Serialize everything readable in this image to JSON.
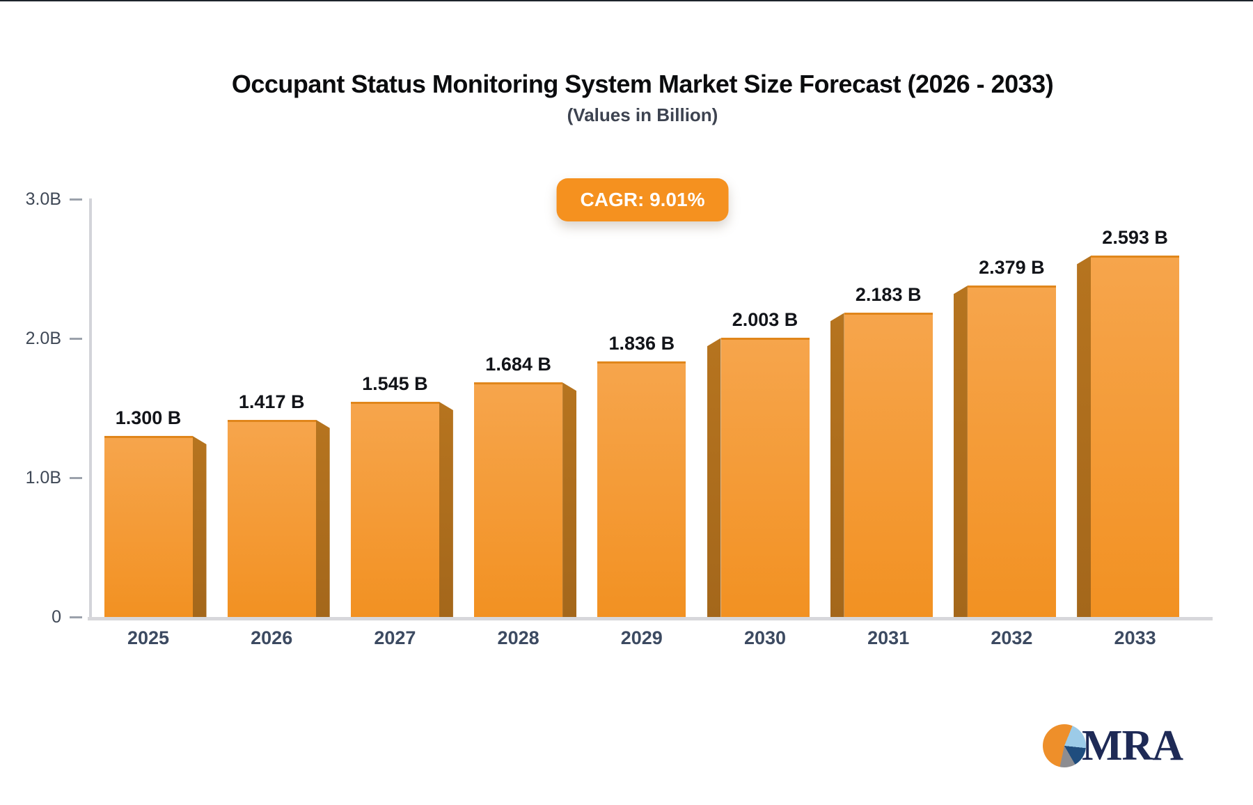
{
  "header": {
    "title": "Occupant Status Monitoring System Market Size Forecast (2026 - 2033)",
    "subtitle": "(Values in Billion)",
    "cagr_label": "CAGR: 9.01%"
  },
  "chart_data": {
    "type": "bar",
    "title": "Occupant Status Monitoring System Market Size Forecast (2026 - 2033)",
    "subtitle": "(Values in Billion)",
    "cagr_pct": 9.01,
    "unit": "B",
    "categories": [
      "2025",
      "2026",
      "2027",
      "2028",
      "2029",
      "2030",
      "2031",
      "2032",
      "2033"
    ],
    "values": [
      1.3,
      1.417,
      1.545,
      1.684,
      1.836,
      2.003,
      2.183,
      2.379,
      2.593
    ],
    "value_labels": [
      "1.300 B",
      "1.417 B",
      "1.545 B",
      "1.684 B",
      "1.836 B",
      "2.003 B",
      "2.183 B",
      "2.379 B",
      "2.593 B"
    ],
    "ylim": [
      0,
      3
    ],
    "ytick_values": [
      0,
      1,
      2,
      3
    ],
    "ytick_labels": [
      "0",
      "1.0B",
      "2.0B",
      "3.0B"
    ],
    "grid": false,
    "legend": "none",
    "bar_front_color_top": "#F6A54C",
    "bar_front_color_bottom": "#F29122",
    "bar_top_stroke": "#E0861B",
    "bar_side_color_top": "#B6741F",
    "bar_side_color_bottom": "#A4671B"
  },
  "logo": {
    "text": "MRA",
    "pie_icon_colors": [
      "#EE8F2A",
      "#9CCBE8",
      "#1F4D7E",
      "#8D8D91"
    ]
  }
}
